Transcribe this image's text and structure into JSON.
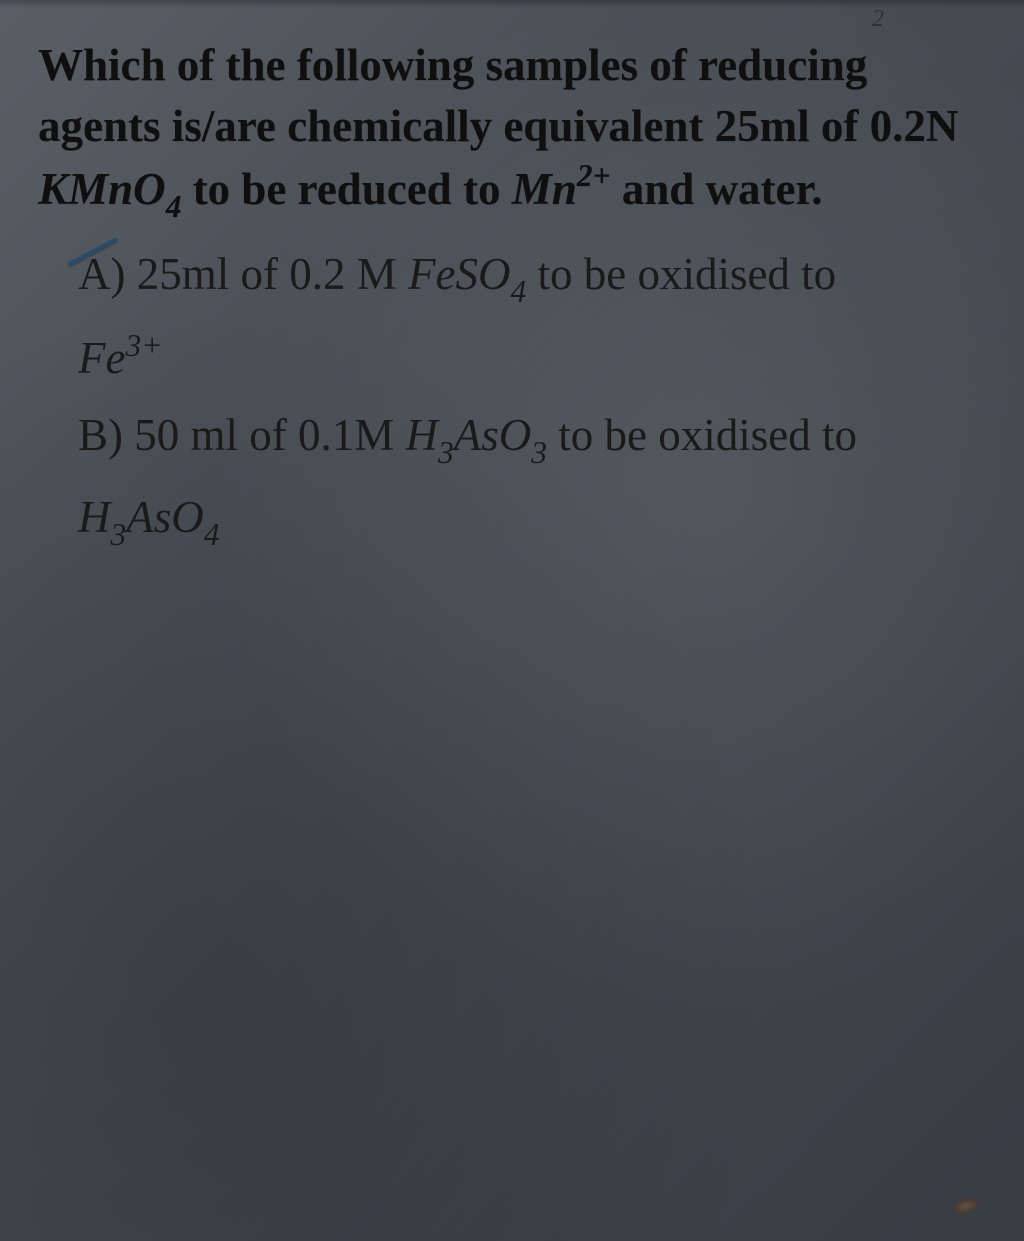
{
  "page": {
    "background_gradient": [
      "#5a5f66",
      "#4a4f56",
      "#42474e",
      "#383d44"
    ],
    "text_color": "#0f0f0f",
    "font_family": "Times New Roman",
    "stem_fontsize": 45,
    "option_fontsize": 45,
    "corner_mark": "2"
  },
  "question": {
    "stem_part1": "Which of the following samples of reducing agents is/are chemically equivalent 25ml of 0.2N ",
    "stem_formula1_prefix": "KMnO",
    "stem_formula1_sub": "4",
    "stem_part2": " to be reduced to ",
    "stem_formula2_prefix": "Mn",
    "stem_formula2_sup": "2+",
    "stem_part3": " and water."
  },
  "options": {
    "A": {
      "label": "A) ",
      "text_before": "25ml of 0.2 M ",
      "formula_prefix": "FeSO",
      "formula_sub": "4",
      "text_after": " to be oxidised to",
      "result_prefix": "Fe",
      "result_sup": "3+",
      "struck": true
    },
    "B": {
      "label": "B) ",
      "text_before": "50 ml of 0.1M ",
      "formula_prefix": "H",
      "formula_sub1": "3",
      "formula_mid": "AsO",
      "formula_sub2": "3",
      "text_after": " to be oxidised to",
      "result_prefix": "H",
      "result_sub1": "3",
      "result_mid": "AsO",
      "result_sub2": "4"
    }
  }
}
